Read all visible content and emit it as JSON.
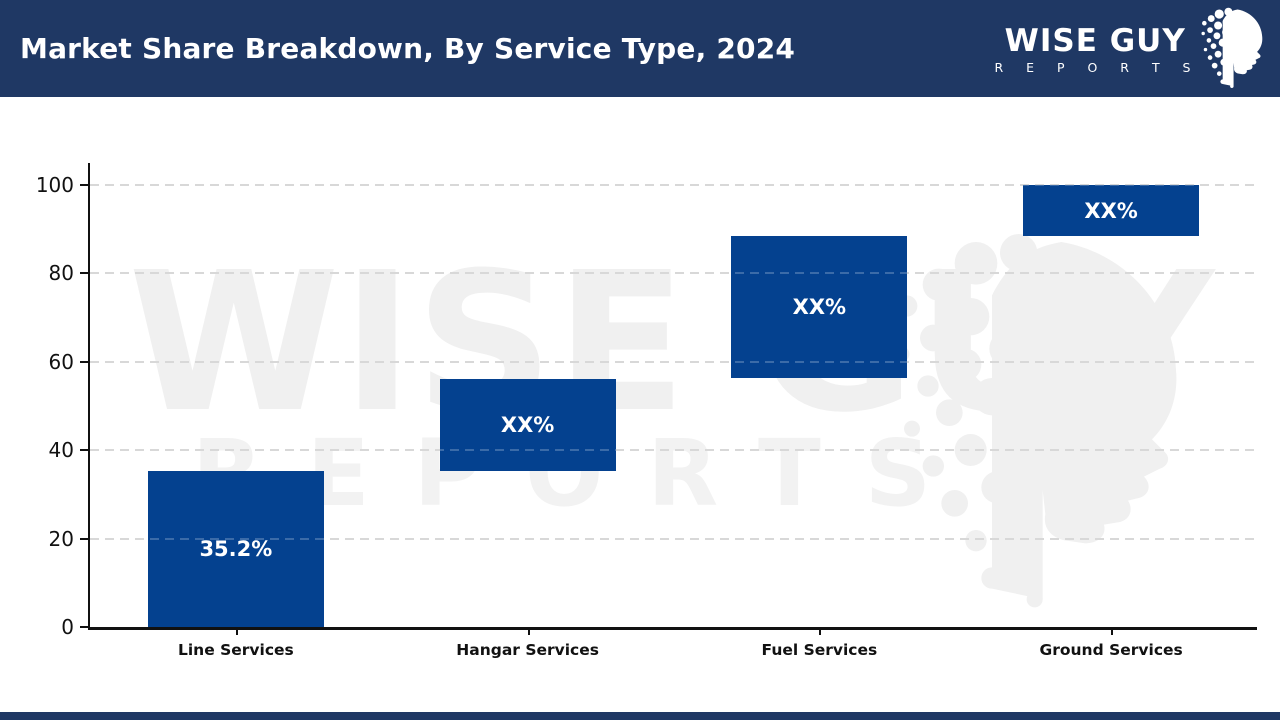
{
  "header": {
    "title": "Market Share Breakdown, By Service Type, 2024",
    "bg_color": "#1f3864",
    "logo": {
      "line1": "WISE GUY",
      "line2": "R E P O R T S"
    }
  },
  "watermark": {
    "line1": "WISE GUY",
    "line2": "REPORTS"
  },
  "footer": {
    "bg_color": "#1f3864"
  },
  "chart_data": {
    "type": "bar",
    "subtype": "waterfall-floating-bars",
    "title": "Market Share Breakdown, By Service Type, 2024",
    "categories": [
      "Line Services",
      "Hangar Services",
      "Fuel Services",
      "Ground Services"
    ],
    "segments": [
      {
        "category": "Line Services",
        "label": "35.2%",
        "start": 0,
        "end": 35.2
      },
      {
        "category": "Hangar Services",
        "label": "XX%",
        "start": 35.2,
        "end": 56.2
      },
      {
        "category": "Fuel Services",
        "label": "XX%",
        "start": 56.4,
        "end": 88.4
      },
      {
        "category": "Ground Services",
        "label": "XX%",
        "start": 88.4,
        "end": 100
      }
    ],
    "yticks": [
      0,
      20,
      40,
      60,
      80,
      100
    ],
    "ylim": [
      0,
      105
    ],
    "xlabel": "",
    "ylabel": "",
    "legend": "none",
    "grid": "horizontal-dashed",
    "bar_color": "#04418f",
    "grid_color": "#cdcdcd",
    "axis_color": "#111111",
    "value_label_color": "#ffffff"
  }
}
